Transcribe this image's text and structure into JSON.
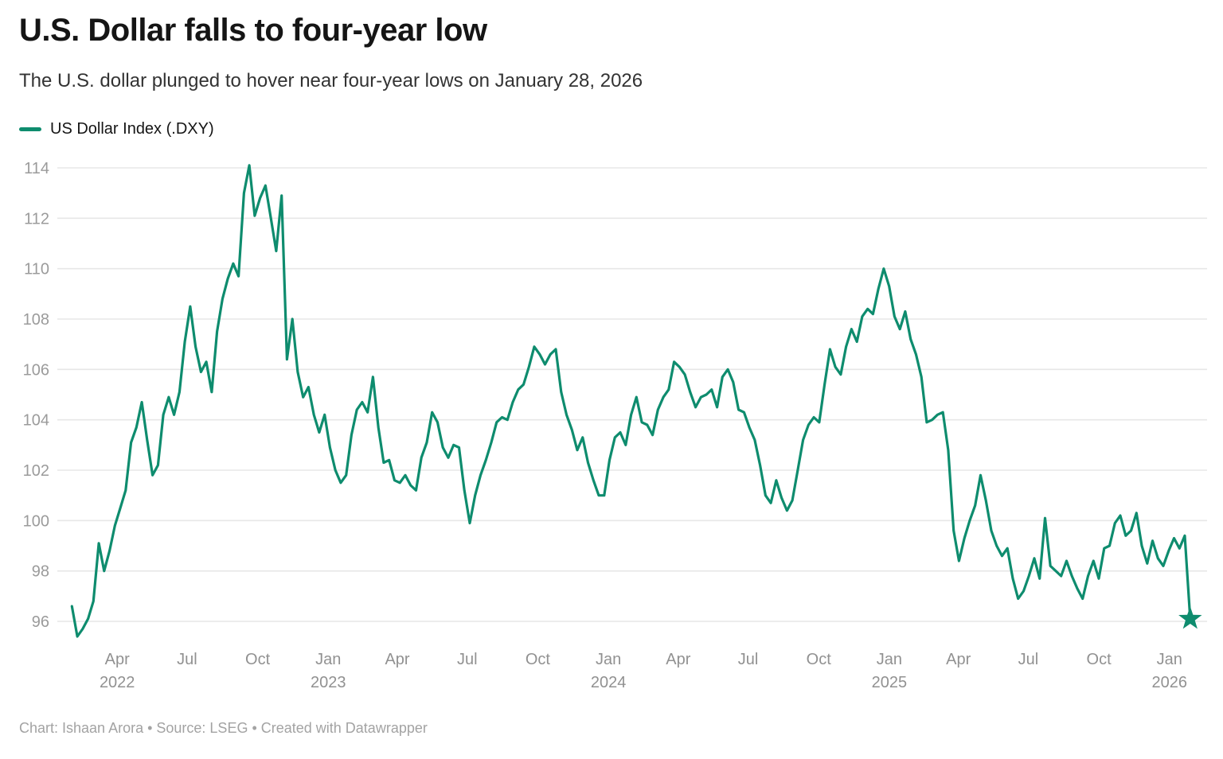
{
  "header": {
    "title": "U.S. Dollar falls to four-year low",
    "subtitle": "The U.S. dollar plunged to hover near four-year lows on January 28, 2026"
  },
  "legend": {
    "items": [
      {
        "label": "US Dollar Index (.DXY)",
        "color": "#0e8c6e"
      }
    ]
  },
  "footer": {
    "text": "Chart: Ishaan Arora • Source: LSEG • Created with Datawrapper"
  },
  "chart_data": {
    "type": "line",
    "title": "U.S. Dollar falls to four-year low",
    "subtitle": "The U.S. dollar plunged to hover near four-year lows on January 28, 2026",
    "grid": true,
    "legend_position": "top-left",
    "end_marker": "star",
    "colors": {
      "line": "#0e8c6e",
      "gridline": "#e7e7e7",
      "y_label": "#9b9b9b",
      "x_label": "#919191"
    },
    "y_axis": {
      "ticks": [
        96,
        98,
        100,
        102,
        104,
        106,
        108,
        110,
        112,
        114
      ],
      "range": [
        94.8,
        114.6
      ]
    },
    "x_axis": {
      "start_date": "2022-02-01",
      "end_date": "2026-01-28",
      "ticks": [
        {
          "month": "Apr",
          "year": "2022",
          "date": "2022-04-01"
        },
        {
          "month": "Jul",
          "year": "",
          "date": "2022-07-01"
        },
        {
          "month": "Oct",
          "year": "",
          "date": "2022-10-01"
        },
        {
          "month": "Jan",
          "year": "2023",
          "date": "2023-01-01"
        },
        {
          "month": "Apr",
          "year": "",
          "date": "2023-04-01"
        },
        {
          "month": "Jul",
          "year": "",
          "date": "2023-07-01"
        },
        {
          "month": "Oct",
          "year": "",
          "date": "2023-10-01"
        },
        {
          "month": "Jan",
          "year": "2024",
          "date": "2024-01-01"
        },
        {
          "month": "Apr",
          "year": "",
          "date": "2024-04-01"
        },
        {
          "month": "Jul",
          "year": "",
          "date": "2024-07-01"
        },
        {
          "month": "Oct",
          "year": "",
          "date": "2024-10-01"
        },
        {
          "month": "Jan",
          "year": "2025",
          "date": "2025-01-01"
        },
        {
          "month": "Apr",
          "year": "",
          "date": "2025-04-01"
        },
        {
          "month": "Jul",
          "year": "",
          "date": "2025-07-01"
        },
        {
          "month": "Oct",
          "year": "",
          "date": "2025-10-01"
        },
        {
          "month": "Jan",
          "year": "2026",
          "date": "2026-01-01"
        }
      ]
    },
    "series": [
      {
        "name": "US Dollar Index (.DXY)",
        "color": "#0e8c6e",
        "cadence": "weekly",
        "start_date": "2022-02-01",
        "end_date": "2026-01-28",
        "final_value": 96.1,
        "final_value_date": "January 28, 2026",
        "values": [
          96.6,
          95.4,
          95.7,
          96.1,
          96.8,
          99.1,
          98.0,
          98.8,
          99.8,
          100.5,
          101.2,
          103.1,
          103.7,
          104.7,
          103.2,
          101.8,
          102.2,
          104.2,
          104.9,
          104.2,
          105.1,
          107.1,
          108.5,
          106.9,
          105.9,
          106.3,
          105.1,
          107.5,
          108.8,
          109.6,
          110.2,
          109.7,
          113.0,
          114.1,
          112.1,
          112.8,
          113.3,
          112.0,
          110.7,
          112.9,
          106.4,
          108.0,
          105.9,
          104.9,
          105.3,
          104.2,
          103.5,
          104.2,
          102.9,
          102.0,
          101.5,
          101.8,
          103.4,
          104.4,
          104.7,
          104.3,
          105.7,
          103.7,
          102.3,
          102.4,
          101.6,
          101.5,
          101.8,
          101.4,
          101.2,
          102.5,
          103.1,
          104.3,
          103.9,
          102.9,
          102.5,
          103.0,
          102.9,
          101.2,
          99.9,
          101.0,
          101.8,
          102.4,
          103.1,
          103.9,
          104.1,
          104.0,
          104.7,
          105.2,
          105.4,
          106.1,
          106.9,
          106.6,
          106.2,
          106.6,
          106.8,
          105.1,
          104.2,
          103.6,
          102.8,
          103.3,
          102.3,
          101.6,
          101.0,
          101.0,
          102.4,
          103.3,
          103.5,
          103.0,
          104.2,
          104.9,
          103.9,
          103.8,
          103.4,
          104.4,
          104.9,
          105.2,
          106.3,
          106.1,
          105.8,
          105.1,
          104.5,
          104.9,
          105.0,
          105.2,
          104.5,
          105.7,
          106.0,
          105.5,
          104.4,
          104.3,
          103.7,
          103.2,
          102.2,
          101.0,
          100.7,
          101.6,
          100.9,
          100.4,
          100.8,
          102.0,
          103.2,
          103.8,
          104.1,
          103.9,
          105.4,
          106.8,
          106.1,
          105.8,
          106.9,
          107.6,
          107.1,
          108.1,
          108.4,
          108.2,
          109.2,
          110.0,
          109.3,
          108.1,
          107.6,
          108.3,
          107.2,
          106.6,
          105.7,
          103.9,
          104.0,
          104.2,
          104.3,
          102.8,
          99.6,
          98.4,
          99.3,
          100.0,
          100.6,
          101.8,
          100.8,
          99.6,
          99.0,
          98.6,
          98.9,
          97.7,
          96.9,
          97.2,
          97.8,
          98.5,
          97.7,
          100.1,
          98.2,
          98.0,
          97.8,
          98.4,
          97.8,
          97.3,
          96.9,
          97.8,
          98.4,
          97.7,
          98.9,
          99.0,
          99.9,
          100.2,
          99.4,
          99.6,
          100.3,
          99.0,
          98.3,
          99.2,
          98.5,
          98.2,
          98.8,
          99.3,
          98.9,
          99.4,
          96.1
        ]
      }
    ]
  }
}
